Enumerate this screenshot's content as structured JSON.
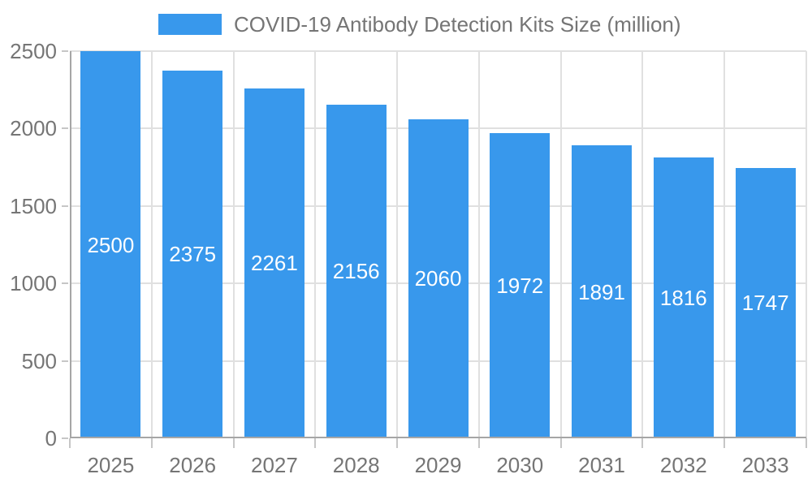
{
  "legend": {
    "label": "COVID-19 Antibody Detection Kits Size (million)"
  },
  "colors": {
    "bar": "#3898EC",
    "grid": "#E0E0E0",
    "axis": "#A6A6A6",
    "tick": "#C6C6C6",
    "tick_label": "#757575",
    "legend_text": "#757575",
    "value_label": "#FFFFFF",
    "background": "#FFFFFF"
  },
  "chart_data": {
    "type": "bar",
    "title": "COVID-19 Antibody Detection Kits Size (million)",
    "categories": [
      "2025",
      "2026",
      "2027",
      "2028",
      "2029",
      "2030",
      "2031",
      "2032",
      "2033"
    ],
    "values": [
      2500,
      2375,
      2261,
      2156,
      2060,
      1972,
      1891,
      1816,
      1747
    ],
    "xlabel": "",
    "ylabel": "",
    "ylim": [
      0,
      2500
    ],
    "yticks": [
      0,
      500,
      1000,
      1500,
      2000,
      2500
    ],
    "grid": true,
    "legend_position": "top-center",
    "bar_label_position": "center-inside"
  }
}
